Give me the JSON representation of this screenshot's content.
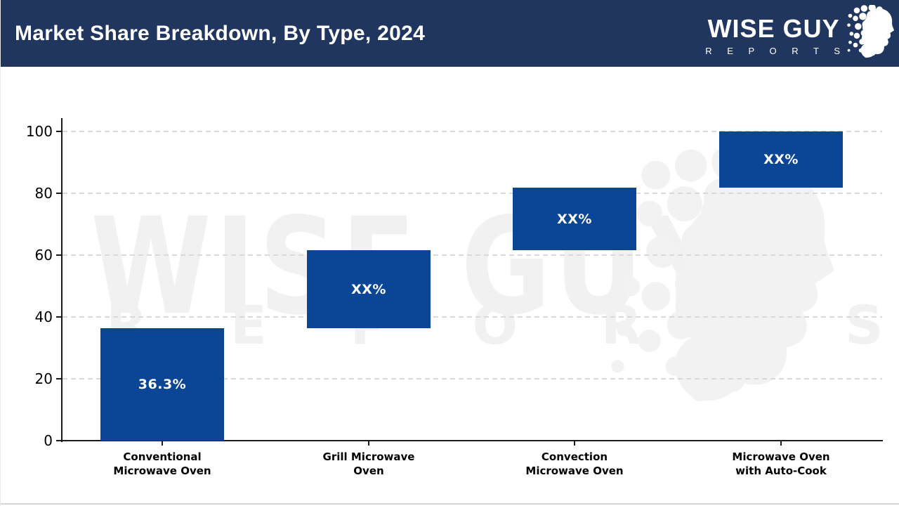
{
  "header": {
    "title": "Market Share Breakdown, By Type, 2024",
    "logo_line1": "WISE GUY",
    "logo_line2": "R E P O R T S"
  },
  "watermark": {
    "line1": "WISE GUY",
    "line2": "R E P O R T S"
  },
  "colors": {
    "header_bg": "#21365f",
    "bar": "#0a4596",
    "bar_label": "#ffffff",
    "grid": "#d9d9d9",
    "watermark": "#f1f1f1"
  },
  "chart_data": {
    "type": "bar",
    "variant": "waterfall",
    "title": "Market Share Breakdown, By Type, 2024",
    "xlabel": "",
    "ylabel": "",
    "ylim": [
      0,
      105
    ],
    "yticks": [
      0,
      20,
      40,
      60,
      80,
      100
    ],
    "grid": "horizontal-dashed",
    "legend": "none",
    "categories": [
      [
        "Conventional",
        "Microwave Oven"
      ],
      [
        "Grill Microwave",
        "Oven"
      ],
      [
        "Convection",
        "Microwave Oven"
      ],
      [
        "Microwave Oven",
        "with Auto-Cook"
      ]
    ],
    "segments": [
      {
        "category": "Conventional Microwave Oven",
        "start": 0,
        "end": 36.3,
        "label": "36.3%"
      },
      {
        "category": "Grill Microwave Oven",
        "start": 36.3,
        "end": 61.5,
        "label": "XX%"
      },
      {
        "category": "Convection Microwave Oven",
        "start": 61.5,
        "end": 81.8,
        "label": "XX%"
      },
      {
        "category": "Microwave Oven with Auto-Cook",
        "start": 81.8,
        "end": 100,
        "label": "XX%"
      }
    ]
  }
}
